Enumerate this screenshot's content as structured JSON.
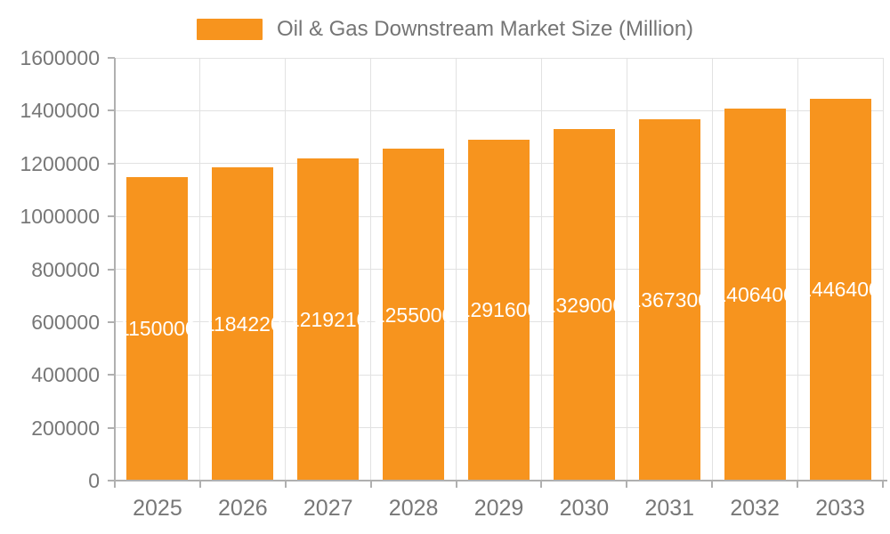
{
  "legend": {
    "label": "Oil & Gas Downstream Market Size (Million)",
    "swatch_color": "#f7941e"
  },
  "chart_data": {
    "type": "bar",
    "title": "Oil & Gas Downstream Market Size (Million)",
    "series_name": "Oil & Gas Downstream Market Size (Million)",
    "categories": [
      "2025",
      "2026",
      "2027",
      "2028",
      "2029",
      "2030",
      "2031",
      "2032",
      "2033"
    ],
    "values": [
      1150000,
      1184220,
      1219210,
      1255000,
      1291600,
      1329000,
      1367300,
      1406400,
      1446400
    ],
    "data_labels": [
      "1150000",
      "1184220",
      "1219210",
      "1255000",
      "1291600",
      "1329000",
      "1367300",
      "1406400",
      "1446400"
    ],
    "yticks": [
      0,
      200000,
      400000,
      600000,
      800000,
      1000000,
      1200000,
      1400000,
      1600000
    ],
    "ylim": [
      0,
      1600000
    ],
    "xlabel": "",
    "ylabel": "",
    "grid": true,
    "legend_position": "top-center",
    "bar_color": "#f7941e",
    "bar_label_color": "#ffffff",
    "axis_text_color": "#777777",
    "grid_color": "#e2e2e2",
    "axis_line_color": "#b0b0b0"
  }
}
